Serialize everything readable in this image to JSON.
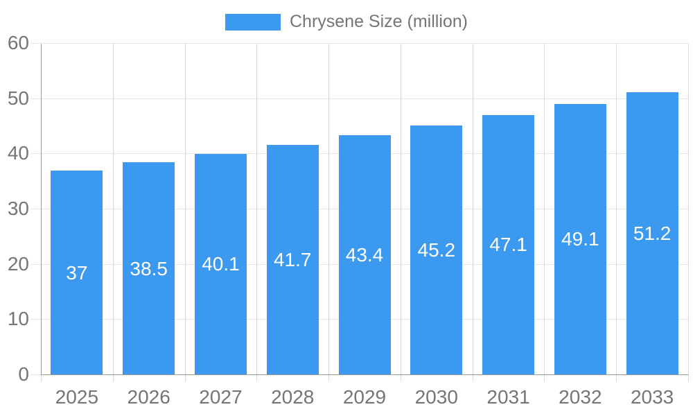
{
  "chart_data": {
    "type": "bar",
    "legend": "Chrysene Size (million)",
    "legend_position": "top",
    "categories": [
      "2025",
      "2026",
      "2027",
      "2028",
      "2029",
      "2030",
      "2031",
      "2032",
      "2033"
    ],
    "series": [
      {
        "name": "Chrysene Size (million)",
        "values": [
          37,
          38.5,
          40.1,
          41.7,
          43.4,
          45.2,
          47.1,
          49.1,
          51.2
        ]
      }
    ],
    "xlabel": "",
    "ylabel": "",
    "ylim": [
      0,
      60
    ],
    "yticks": [
      0,
      10,
      20,
      30,
      40,
      50,
      60
    ],
    "grid": true,
    "value_labels_inside_bars": true,
    "colors": {
      "bar": "#3B99F0",
      "axis_text": "#757575",
      "value_text": "#ffffff",
      "hgrid": "#e6e6e6",
      "vgrid": "#d9d9d9",
      "axis_line": "#999999",
      "background": "#ffffff"
    }
  }
}
